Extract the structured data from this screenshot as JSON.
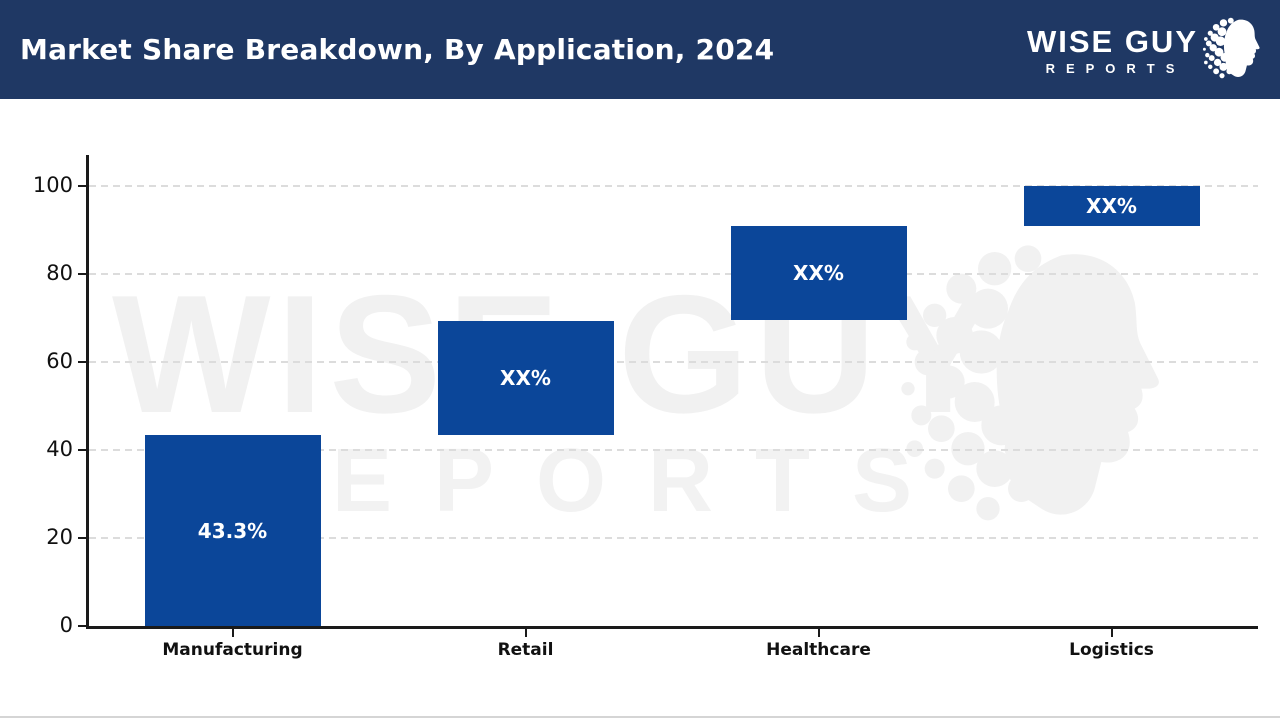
{
  "header": {
    "title": "Market Share Breakdown, By Application, 2024",
    "logo": {
      "wordmark": "WISE GUY",
      "subtext": "REPORTS"
    }
  },
  "watermark": {
    "line1": "WISE GUY",
    "line2": "REPORTS"
  },
  "chart_data": {
    "type": "bar",
    "subtype": "waterfall-breakdown",
    "title": "Market Share Breakdown, By Application, 2024",
    "categories": [
      "Manufacturing",
      "Retail",
      "Healthcare",
      "Logistics"
    ],
    "series": [
      {
        "name": "Manufacturing",
        "start": 0,
        "end": 43.3,
        "value_label": "43.3%"
      },
      {
        "name": "Retail",
        "start": 43.3,
        "end": 69.4,
        "value_label": "XX%"
      },
      {
        "name": "Healthcare",
        "start": 69.4,
        "end": 90.9,
        "value_label": "XX%"
      },
      {
        "name": "Logistics",
        "start": 90.9,
        "end": 100,
        "value_label": "XX%"
      }
    ],
    "xlabel": "",
    "ylabel": "",
    "ylim": [
      0,
      107
    ],
    "yticks": [
      0,
      20,
      40,
      60,
      80,
      100
    ],
    "grid": "horizontal dashed",
    "legend": "none",
    "bar_color": "#0b4699",
    "bar_label_color": "#ffffff"
  },
  "colors": {
    "header_bg": "#1f3864",
    "bar": "#0b4699",
    "axis": "#1a1a1a",
    "grid": "#dcdcdc",
    "watermark": "#f1f1f1",
    "text": "#111111"
  }
}
